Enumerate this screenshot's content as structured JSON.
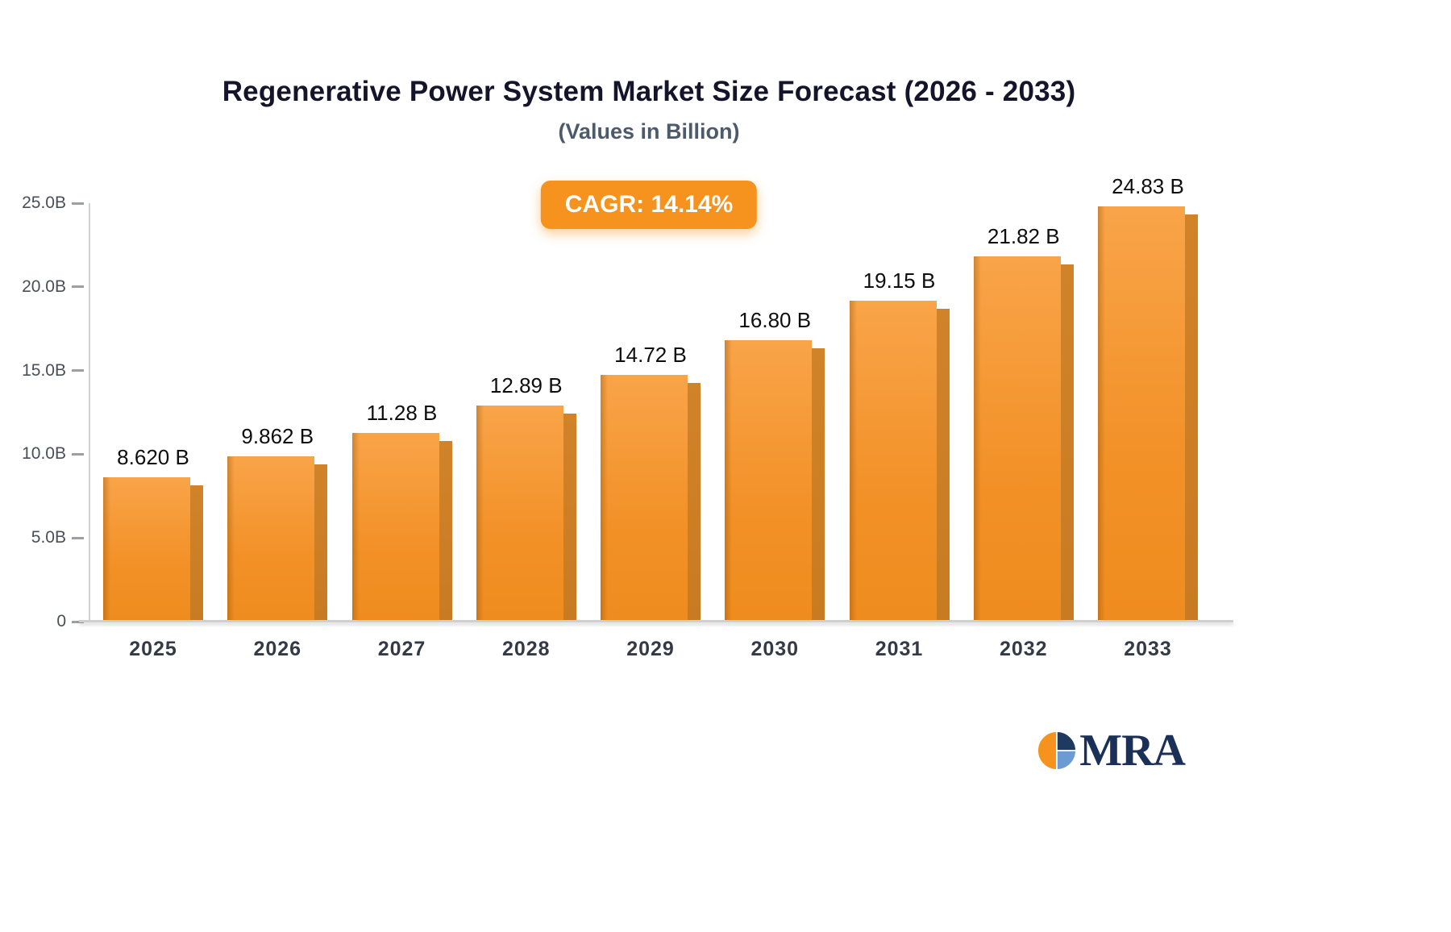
{
  "title": "Regenerative Power System Market Size Forecast (2026 - 2033)",
  "subtitle": "(Values in Billion)",
  "badge": {
    "label": "CAGR: 14.14%",
    "color": "#f6921e"
  },
  "logo": {
    "text": "MRA"
  },
  "colors": {
    "bar_main": "#f39426",
    "bar_side": "#c87b22",
    "axis": "#cfcfcf",
    "title": "#14142b",
    "badge": "#f6921e",
    "logo_navy": "#1b3058",
    "logo_lightblue": "#6b9bd2"
  },
  "chart_data": {
    "type": "bar",
    "title": "Regenerative Power System Market Size Forecast (2026 - 2033)",
    "subtitle": "(Values in Billion)",
    "cagr": "CAGR: 14.14%",
    "categories": [
      "2025",
      "2026",
      "2027",
      "2028",
      "2029",
      "2030",
      "2031",
      "2032",
      "2033"
    ],
    "values": [
      8.62,
      9.862,
      11.28,
      12.89,
      14.72,
      16.8,
      19.15,
      21.82,
      24.83
    ],
    "value_labels": [
      "8.620 B",
      "9.862 B",
      "11.28 B",
      "12.89 B",
      "14.72 B",
      "16.80 B",
      "19.15 B",
      "21.82 B",
      "24.83 B"
    ],
    "xlabel": "",
    "ylabel": "",
    "ylim": [
      0,
      25
    ],
    "yticks": [
      {
        "value": 0,
        "label": "0"
      },
      {
        "value": 5,
        "label": "5.0B"
      },
      {
        "value": 10,
        "label": "10.0B"
      },
      {
        "value": 15,
        "label": "15.0B"
      },
      {
        "value": 20,
        "label": "20.0B"
      },
      {
        "value": 25,
        "label": "25.0B"
      }
    ],
    "grid": false,
    "legend": false
  }
}
